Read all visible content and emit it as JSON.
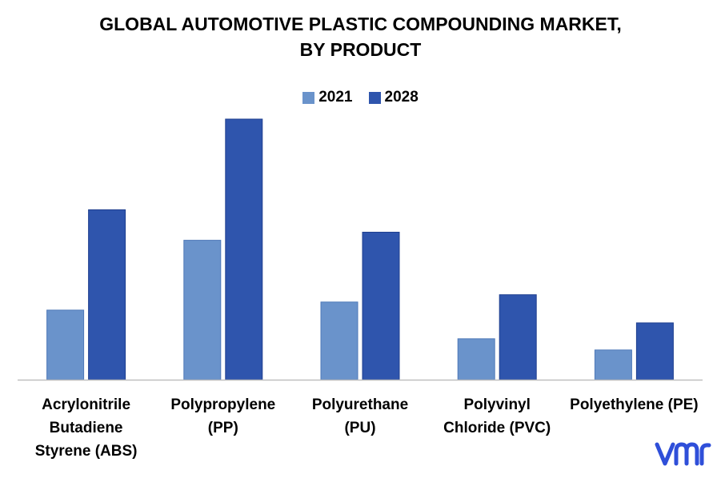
{
  "chart_data": {
    "type": "bar",
    "title_lines": [
      "GLOBAL AUTOMOTIVE PLASTIC COMPOUNDING MARKET,",
      "BY PRODUCT"
    ],
    "categories": [
      [
        "Acrylonitrile",
        "Butadiene",
        "Styrene (ABS)"
      ],
      [
        "Polypropylene",
        "(PP)"
      ],
      [
        "Polyurethane",
        "(PU)"
      ],
      [
        "Polyvinyl",
        "Chloride (PVC)"
      ],
      [
        "Polyethylene (PE)"
      ]
    ],
    "series": [
      {
        "name": "2021",
        "values": [
          26.7,
          53.5,
          29.8,
          15.7,
          11.4
        ]
      },
      {
        "name": "2028",
        "values": [
          65.2,
          100.0,
          56.6,
          32.6,
          21.8
        ]
      }
    ],
    "ylim": [
      0,
      100
    ],
    "grid": false,
    "legend_position": "top-center",
    "colors": {
      "2021": "#6A93CB",
      "2028": "#2F55AD",
      "axis": "#BFBFBF"
    }
  },
  "logo": {
    "text": "vmr",
    "color": "#2F4FD9"
  }
}
